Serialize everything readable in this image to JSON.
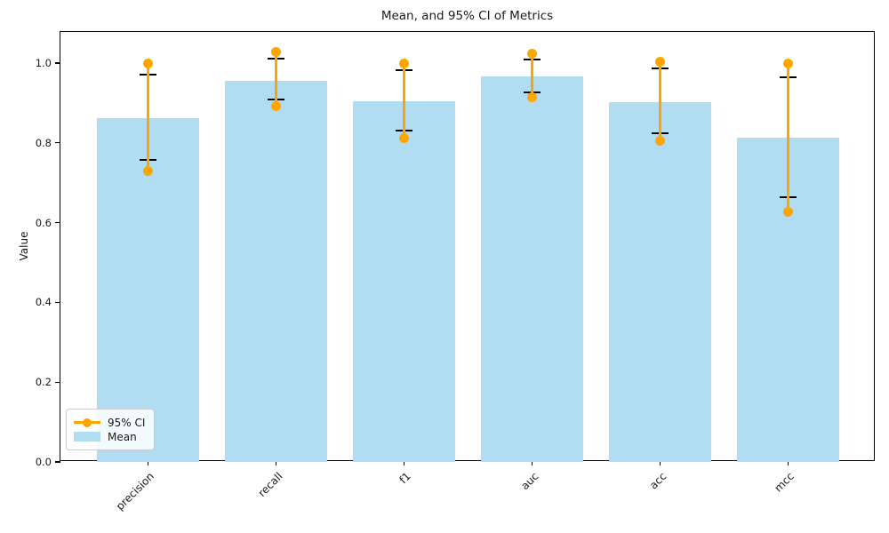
{
  "chart_data": {
    "type": "bar",
    "title": "Mean, and 95% CI of Metrics",
    "xlabel": "",
    "ylabel": "Value",
    "categories": [
      "precision",
      "recall",
      "f1",
      "auc",
      "acc",
      "mcc"
    ],
    "series": [
      {
        "name": "Mean",
        "type": "bar",
        "color": "#B0DDF1",
        "values": [
          0.862,
          0.955,
          0.905,
          0.967,
          0.903,
          0.813
        ]
      },
      {
        "name": "95% CI",
        "type": "errorbar",
        "color": "#FFA500",
        "lower": [
          0.73,
          0.891,
          0.812,
          0.914,
          0.805,
          0.627
        ],
        "upper": [
          0.999,
          1.028,
          1.0,
          1.023,
          1.003,
          1.0
        ]
      }
    ],
    "whiskers": {
      "color": "#000000",
      "lower": [
        0.757,
        0.908,
        0.831,
        0.927,
        0.825,
        0.663
      ],
      "upper": [
        0.972,
        1.012,
        0.982,
        1.01,
        0.986,
        0.965
      ]
    },
    "yticks": [
      0.0,
      0.2,
      0.4,
      0.6,
      0.8,
      1.0
    ],
    "yticklabels": [
      "0.0",
      "0.2",
      "0.4",
      "0.6",
      "0.8",
      "1.0"
    ],
    "ylim": [
      0,
      1.078
    ],
    "grid": false,
    "legend": {
      "position": "lower-left",
      "entries": [
        {
          "label": "95% CI",
          "marker": "line-dot",
          "color": "#FFA500"
        },
        {
          "label": "Mean",
          "marker": "patch",
          "color": "#B0DDF1"
        }
      ]
    }
  }
}
